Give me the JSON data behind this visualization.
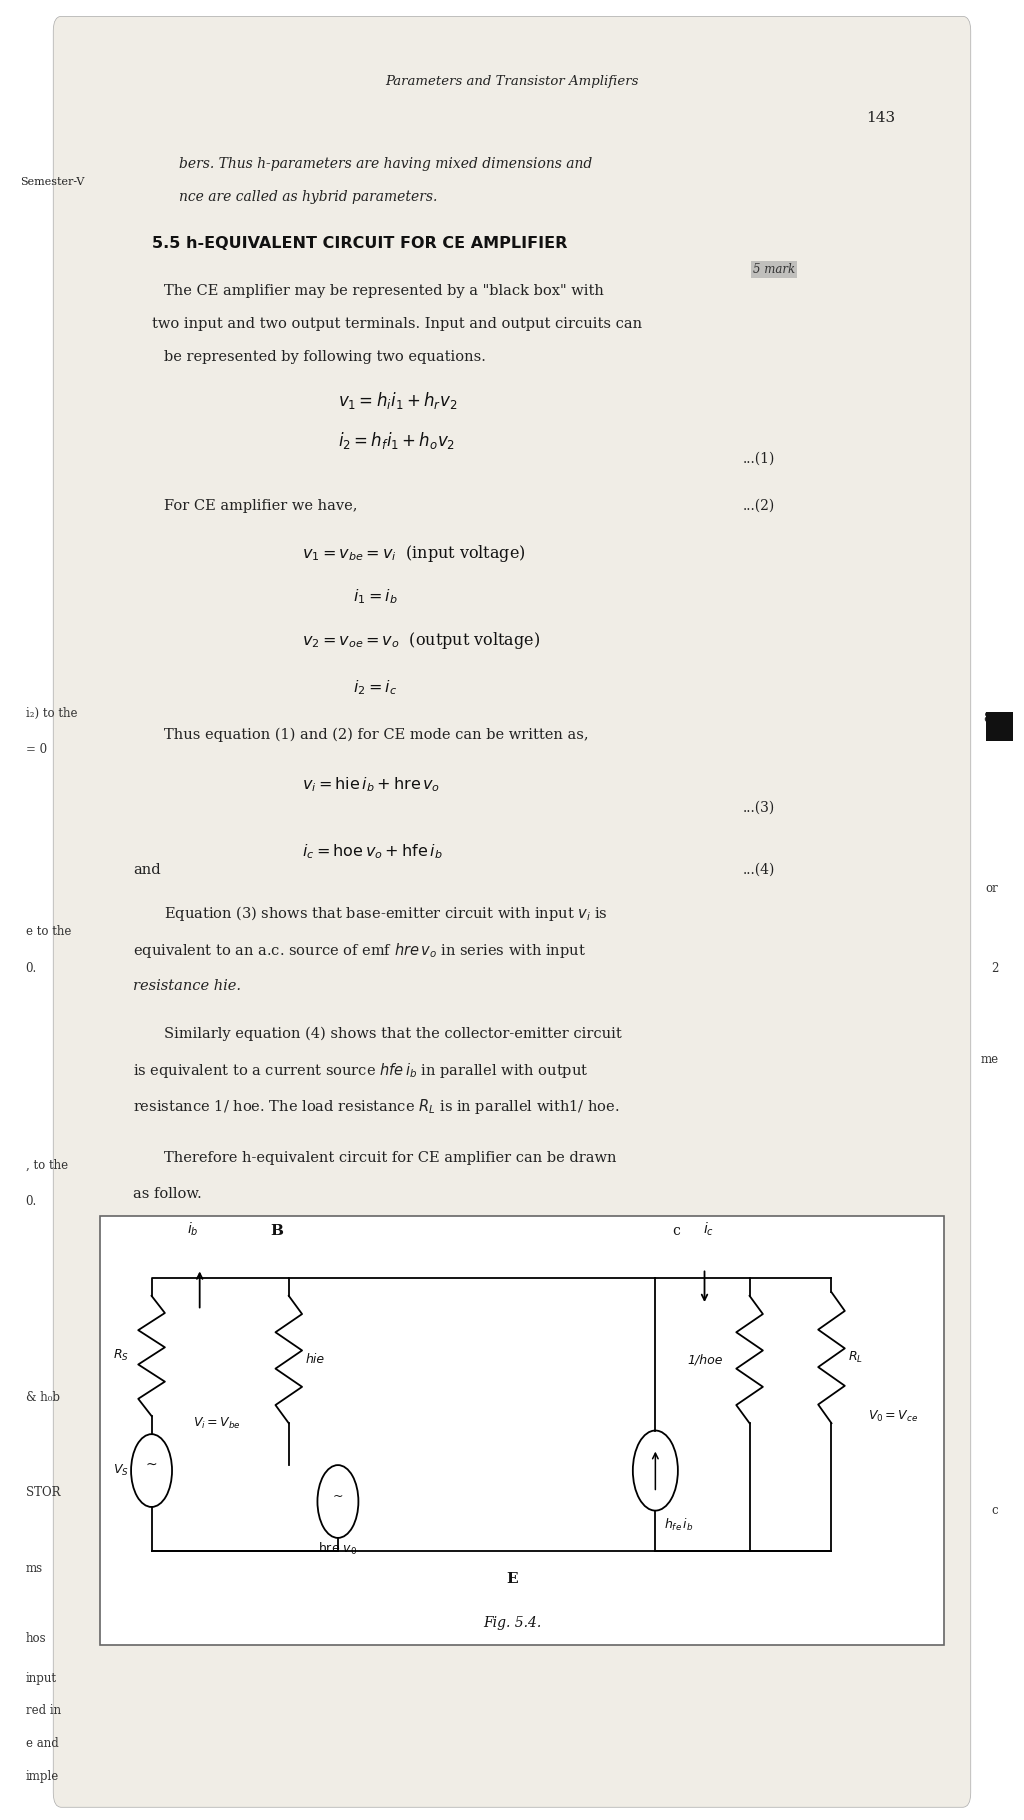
{
  "bg_color": "#c8a882",
  "page_color": "#f0ede6",
  "header_text": "Parameters and Transistor Amplifiers",
  "page_number": "143",
  "semester_label": "Semester-V"
}
